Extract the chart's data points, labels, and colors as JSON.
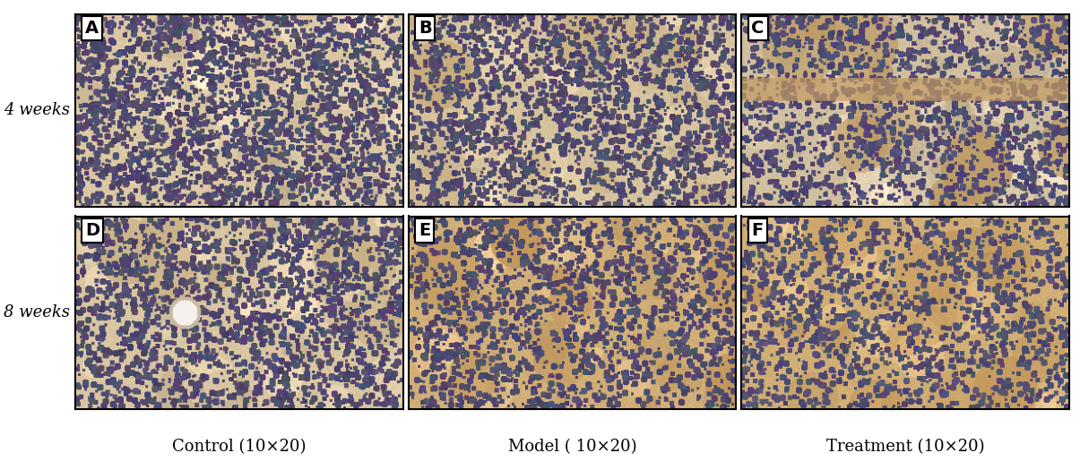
{
  "labels": [
    "A",
    "B",
    "C",
    "D",
    "E",
    "F"
  ],
  "row_labels": [
    "4 weeks",
    "8 weeks"
  ],
  "col_labels": [
    "Control (10×20)",
    "Model ( 10×20)",
    "Treatment (10×20)"
  ],
  "background_color": "#ffffff",
  "fig_width": 12.05,
  "fig_height": 5.25,
  "label_fontsize": 16,
  "col_label_fontsize": 13,
  "row_label_fontsize": 13,
  "panel_label_fontsize": 14,
  "image_colors": {
    "A": {
      "base": [
        220,
        200,
        165
      ],
      "dot_color": [
        80,
        75,
        110
      ],
      "dot_density": 0.035,
      "patch_color": null
    },
    "B": {
      "base": [
        215,
        195,
        158
      ],
      "dot_color": [
        80,
        75,
        110
      ],
      "dot_density": 0.03,
      "patch_color": [
        200,
        170,
        120
      ]
    },
    "C": {
      "base": [
        210,
        192,
        160
      ],
      "dot_color": [
        80,
        75,
        115
      ],
      "dot_density": 0.025,
      "patch_color": [
        190,
        155,
        100
      ]
    },
    "D": {
      "base": [
        218,
        198,
        162
      ],
      "dot_color": [
        80,
        75,
        110
      ],
      "dot_density": 0.03,
      "patch_color": [
        200,
        175,
        130
      ]
    },
    "E": {
      "base": [
        210,
        175,
        120
      ],
      "dot_color": [
        80,
        75,
        110
      ],
      "dot_density": 0.025,
      "patch_color": [
        195,
        150,
        90
      ]
    },
    "F": {
      "base": [
        210,
        175,
        118
      ],
      "dot_color": [
        82,
        78,
        112
      ],
      "dot_density": 0.022,
      "patch_color": [
        195,
        150,
        88
      ]
    }
  }
}
